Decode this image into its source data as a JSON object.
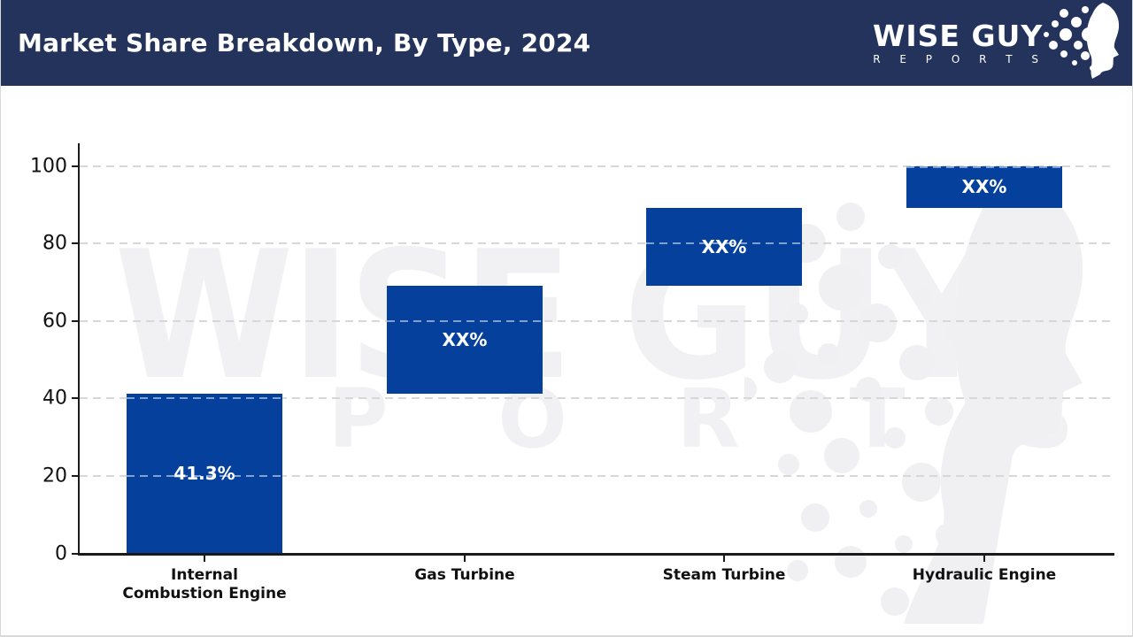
{
  "header": {
    "title": "Market Share Breakdown, By Type, 2024",
    "logo": {
      "line1": "WISE GUY",
      "line2": "R E P O R T S"
    }
  },
  "watermark": {
    "line1": "WISE GUY",
    "line2": "P O R T S"
  },
  "icons": {
    "header_logo": "dotted-head-profile-icon",
    "background": "dotted-head-profile-watermark-icon"
  },
  "chart_data": {
    "type": "bar",
    "subtype": "waterfall",
    "title": "Market Share Breakdown, By Type, 2024",
    "categories": [
      "Internal\nCombustion Engine",
      "Gas Turbine",
      "Steam Turbine",
      "Hydraulic Engine"
    ],
    "segments": [
      {
        "category": "Internal Combustion Engine",
        "slug": "internal-combustion-engine",
        "start": 0,
        "end": 41.3,
        "label": "41.3%"
      },
      {
        "category": "Gas Turbine",
        "slug": "gas-turbine",
        "start": 41.3,
        "end": 69.0,
        "label": "XX%"
      },
      {
        "category": "Steam Turbine",
        "slug": "steam-turbine",
        "start": 69.0,
        "end": 89.2,
        "label": "XX%"
      },
      {
        "category": "Hydraulic Engine",
        "slug": "hydraulic-engine",
        "start": 89.2,
        "end": 100,
        "label": "XX%"
      }
    ],
    "yticks": [
      0,
      20,
      40,
      60,
      80,
      100
    ],
    "ylim": [
      0,
      106
    ],
    "xlabel": "",
    "ylabel": "",
    "grid": "horizontal-dashed",
    "legend": "none",
    "bar_color": "#05419c",
    "bar_label_color": "#ffffff"
  },
  "colors": {
    "header_bg": "#23335c",
    "bar": "#05419c",
    "gridline": "#d7d7d7",
    "axis": "#1a1a1a",
    "watermark": "#f1f1f3",
    "page_bg": "#ffffff"
  }
}
